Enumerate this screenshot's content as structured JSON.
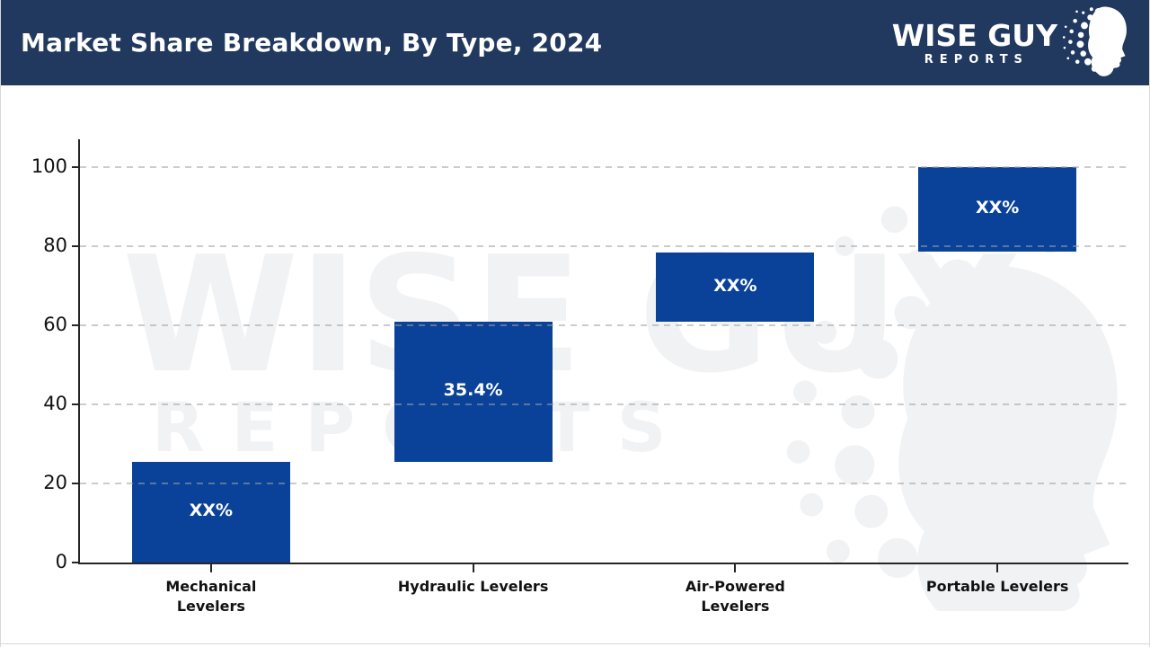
{
  "header": {
    "title": "Market Share Breakdown, By Type, 2024",
    "logo": {
      "line1": "WISE GUY",
      "line2": "REPORTS"
    }
  },
  "watermark": {
    "line1": "WISE GUY",
    "line2": "REPORTS"
  },
  "colors": {
    "header_bg": "#21395f",
    "bar": "#0a4299",
    "bar_label": "#ffffff",
    "grid": "#d9d9d9",
    "axis": "#262626",
    "text": "#111111",
    "watermark": "#f1f2f4"
  },
  "chart_data": {
    "type": "bar",
    "subtype": "waterfall",
    "title": "Market Share Breakdown, By Type, 2024",
    "categories": [
      "Mechanical Levelers",
      "Hydraulic Levelers",
      "Air-Powered Levelers",
      "Portable Levelers"
    ],
    "tick_lines": [
      [
        "Mechanical",
        "Levelers"
      ],
      [
        "Hydraulic Levelers"
      ],
      [
        "Air-Powered",
        "Levelers"
      ],
      [
        "Portable Levelers"
      ]
    ],
    "segments": [
      {
        "category": "Mechanical Levelers",
        "start": 0,
        "end": 25.5,
        "label": "XX%"
      },
      {
        "category": "Hydraulic Levelers",
        "start": 25.5,
        "end": 60.9,
        "label": "35.4%"
      },
      {
        "category": "Air-Powered Levelers",
        "start": 60.9,
        "end": 78.4,
        "label": "XX%"
      },
      {
        "category": "Portable Levelers",
        "start": 78.6,
        "end": 100,
        "label": "XX%"
      }
    ],
    "yticks": [
      0,
      20,
      40,
      60,
      80,
      100
    ],
    "ylim": [
      0,
      100
    ],
    "grid": "dashed-horizontal",
    "legend": "none"
  }
}
